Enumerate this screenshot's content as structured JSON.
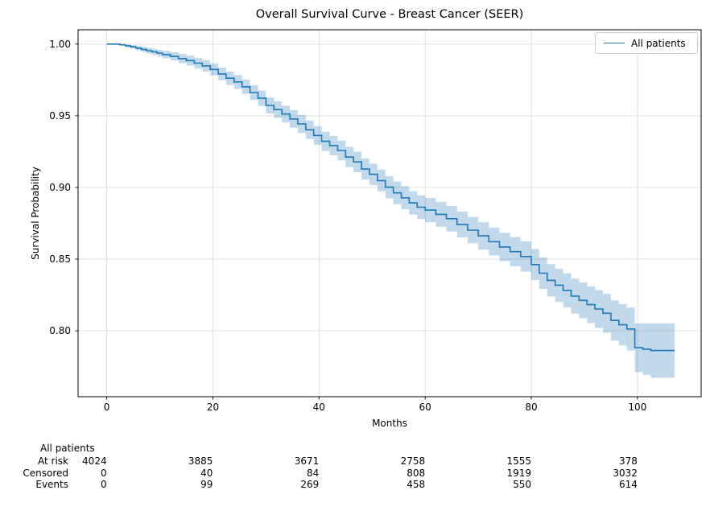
{
  "colors": {
    "line": "#1f77b4",
    "band": "#1f77b4",
    "band_opacity": 0.28,
    "grid": "#dcdcdc",
    "spine": "#000000",
    "legend_border": "#cccccc"
  },
  "risk_table": {
    "group_label": "All patients",
    "time_points": [
      0,
      20,
      40,
      60,
      80,
      100
    ],
    "rows": [
      {
        "label": "At risk",
        "values": [
          "4024",
          "3885",
          "3671",
          "2758",
          "1555",
          "378"
        ]
      },
      {
        "label": "Censored",
        "values": [
          "0",
          "40",
          "84",
          "808",
          "1919",
          "3032"
        ]
      },
      {
        "label": "Events",
        "values": [
          "0",
          "99",
          "269",
          "458",
          "550",
          "614"
        ]
      }
    ]
  },
  "chart_data": {
    "type": "line",
    "subtype": "kaplan-meier-step-with-confidence-band",
    "title": "Overall Survival Curve - Breast Cancer (SEER)",
    "xlabel": "Months",
    "ylabel": "Survival Probability",
    "xlim": [
      -5.4,
      112.0
    ],
    "ylim": [
      0.754,
      1.01
    ],
    "x_ticks": [
      0,
      20,
      40,
      60,
      80,
      100
    ],
    "y_ticks": [
      "0.80",
      "0.85",
      "0.90",
      "0.95",
      "1.00"
    ],
    "grid": true,
    "legend_position": "upper right",
    "series": [
      {
        "name": "All patients",
        "points_format": [
          "months",
          "survival",
          "ci_lower",
          "ci_upper"
        ],
        "points": [
          [
            0,
            1.0,
            1.0,
            1.0
          ],
          [
            2.5,
            0.9995,
            0.999,
            1.0
          ],
          [
            3.5,
            0.9988,
            0.9978,
            0.9998
          ],
          [
            4.5,
            0.9981,
            0.9968,
            0.9994
          ],
          [
            5.5,
            0.9972,
            0.9956,
            0.9988
          ],
          [
            6.5,
            0.9963,
            0.9945,
            0.9981
          ],
          [
            7.5,
            0.9954,
            0.9934,
            0.9974
          ],
          [
            8.5,
            0.9946,
            0.9924,
            0.9968
          ],
          [
            9.5,
            0.9937,
            0.9913,
            0.9961
          ],
          [
            10.5,
            0.9927,
            0.9901,
            0.9953
          ],
          [
            12,
            0.9914,
            0.9885,
            0.9943
          ],
          [
            13.5,
            0.9899,
            0.9867,
            0.9931
          ],
          [
            15,
            0.9885,
            0.985,
            0.992
          ],
          [
            16.5,
            0.9867,
            0.983,
            0.9904
          ],
          [
            18,
            0.9848,
            0.9808,
            0.9888
          ],
          [
            19.5,
            0.9823,
            0.9781,
            0.9865
          ],
          [
            21,
            0.9792,
            0.9748,
            0.9836
          ],
          [
            22.5,
            0.9762,
            0.9716,
            0.9808
          ],
          [
            24,
            0.9736,
            0.9688,
            0.9784
          ],
          [
            25.5,
            0.9702,
            0.9652,
            0.9752
          ],
          [
            27,
            0.9662,
            0.961,
            0.9714
          ],
          [
            28.5,
            0.9622,
            0.9568,
            0.9676
          ],
          [
            30,
            0.9572,
            0.9516,
            0.9628
          ],
          [
            31.5,
            0.9543,
            0.9485,
            0.9601
          ],
          [
            33,
            0.9512,
            0.9453,
            0.9571
          ],
          [
            34.5,
            0.9478,
            0.9417,
            0.9539
          ],
          [
            36,
            0.9443,
            0.9381,
            0.9505
          ],
          [
            37.5,
            0.9402,
            0.9338,
            0.9466
          ],
          [
            39,
            0.9363,
            0.9298,
            0.9428
          ],
          [
            40.5,
            0.9322,
            0.9255,
            0.9389
          ],
          [
            42,
            0.9292,
            0.9224,
            0.936
          ],
          [
            43.5,
            0.9258,
            0.9189,
            0.9327
          ],
          [
            45,
            0.9212,
            0.9141,
            0.9283
          ],
          [
            46.5,
            0.9178,
            0.9106,
            0.925
          ],
          [
            48,
            0.9128,
            0.9054,
            0.9202
          ],
          [
            49.5,
            0.9092,
            0.9017,
            0.9167
          ],
          [
            51,
            0.9048,
            0.8972,
            0.9124
          ],
          [
            52.5,
            0.9002,
            0.8924,
            0.908
          ],
          [
            54,
            0.8962,
            0.8883,
            0.9041
          ],
          [
            55.5,
            0.8928,
            0.8848,
            0.9008
          ],
          [
            57,
            0.8892,
            0.881,
            0.8974
          ],
          [
            58.5,
            0.8862,
            0.8779,
            0.8945
          ],
          [
            60,
            0.8842,
            0.8757,
            0.8927
          ],
          [
            62,
            0.8812,
            0.8725,
            0.8899
          ],
          [
            64,
            0.8782,
            0.8693,
            0.8871
          ],
          [
            66,
            0.8742,
            0.8652,
            0.8832
          ],
          [
            68,
            0.8702,
            0.861,
            0.8794
          ],
          [
            70,
            0.8662,
            0.8567,
            0.8757
          ],
          [
            72,
            0.8622,
            0.8525,
            0.8719
          ],
          [
            74,
            0.8585,
            0.8486,
            0.8684
          ],
          [
            76,
            0.8552,
            0.845,
            0.8654
          ],
          [
            78,
            0.8518,
            0.8413,
            0.8623
          ],
          [
            80,
            0.8462,
            0.8354,
            0.857
          ],
          [
            81.5,
            0.8402,
            0.8292,
            0.8512
          ],
          [
            83,
            0.8352,
            0.8239,
            0.8465
          ],
          [
            84.5,
            0.8318,
            0.8202,
            0.8434
          ],
          [
            86,
            0.8282,
            0.8163,
            0.8401
          ],
          [
            87.5,
            0.8242,
            0.812,
            0.8364
          ],
          [
            89,
            0.8212,
            0.8087,
            0.8337
          ],
          [
            90.5,
            0.8182,
            0.8054,
            0.831
          ],
          [
            92,
            0.8152,
            0.802,
            0.8284
          ],
          [
            93.5,
            0.8122,
            0.7986,
            0.8258
          ],
          [
            95,
            0.8072,
            0.7932,
            0.8212
          ],
          [
            96.5,
            0.8042,
            0.7897,
            0.8187
          ],
          [
            98,
            0.8012,
            0.7862,
            0.8162
          ],
          [
            99.5,
            0.7882,
            0.7712,
            0.8052
          ],
          [
            101,
            0.7872,
            0.7692,
            0.8052
          ],
          [
            102.5,
            0.7862,
            0.7672,
            0.8052
          ],
          [
            107,
            0.7862,
            0.7672,
            0.8052
          ]
        ]
      }
    ]
  }
}
